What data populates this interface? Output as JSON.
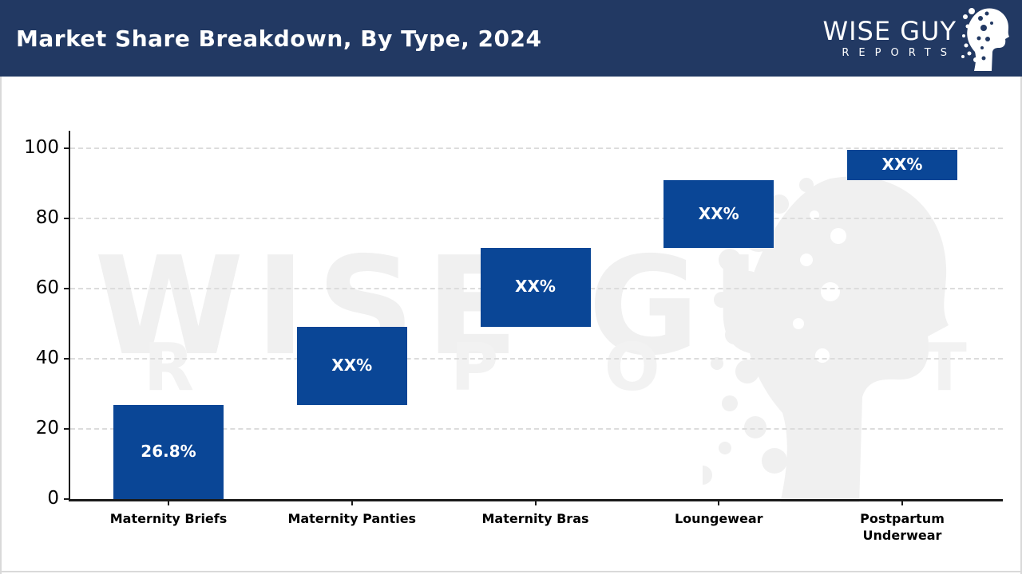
{
  "header": {
    "title": "Market Share Breakdown, By Type, 2024",
    "logo_line1": "WISE GUY",
    "logo_line2": "REPORTS"
  },
  "watermark": {
    "line1": "WISE GUY",
    "line2": "R E P O R T S"
  },
  "colors": {
    "header_bg": "#223963",
    "bar": "#0a4696",
    "grid": "#dcdcdc",
    "axis": "#1a1a1a",
    "watermark": "#f0f0f0",
    "frame": "#d9d9d9",
    "bar_label": "#ffffff"
  },
  "chart_data": {
    "type": "bar",
    "subtype": "floating-waterfall",
    "title": "Market Share Breakdown, By Type, 2024",
    "categories": [
      "Maternity Briefs",
      "Maternity Panties",
      "Maternity Bras",
      "Loungewear",
      "Postpartum Underwear"
    ],
    "series": [
      {
        "name": "Market share (%)",
        "segments": [
          {
            "start": 0,
            "end": 26.8,
            "label": "26.8%"
          },
          {
            "start": 26.8,
            "end": 49.1,
            "label": "XX%"
          },
          {
            "start": 49.1,
            "end": 71.6,
            "label": "XX%"
          },
          {
            "start": 71.5,
            "end": 91.0,
            "label": "XX%"
          },
          {
            "start": 91.0,
            "end": 99.5,
            "label": "XX%"
          }
        ]
      }
    ],
    "yticks": [
      0,
      20,
      40,
      60,
      80,
      100
    ],
    "ylim": [
      0,
      105
    ],
    "xlabel": "",
    "ylabel": "",
    "grid": "horizontal-dashed",
    "legend": "none"
  }
}
